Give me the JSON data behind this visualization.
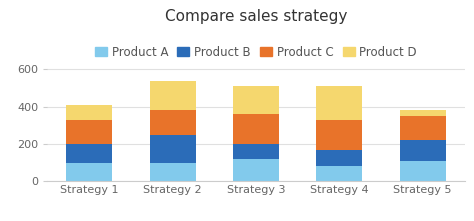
{
  "title": "Compare sales strategy",
  "categories": [
    "Strategy 1",
    "Strategy 2",
    "Strategy 3",
    "Strategy 4",
    "Strategy 5"
  ],
  "products": [
    "Product A",
    "Product B",
    "Product C",
    "Product D"
  ],
  "values": {
    "Product A": [
      100,
      100,
      120,
      80,
      110
    ],
    "Product B": [
      100,
      150,
      80,
      90,
      110
    ],
    "Product C": [
      130,
      130,
      160,
      160,
      130
    ],
    "Product D": [
      80,
      160,
      150,
      180,
      30
    ]
  },
  "colors": {
    "Product A": "#82CAEC",
    "Product B": "#2B6CB8",
    "Product C": "#E8732A",
    "Product D": "#F5D76E"
  },
  "ylim": [
    0,
    640
  ],
  "yticks": [
    0,
    200,
    400,
    600
  ],
  "background_color": "#ffffff",
  "title_fontsize": 11,
  "legend_fontsize": 8.5,
  "tick_fontsize": 8,
  "bar_width": 0.55
}
